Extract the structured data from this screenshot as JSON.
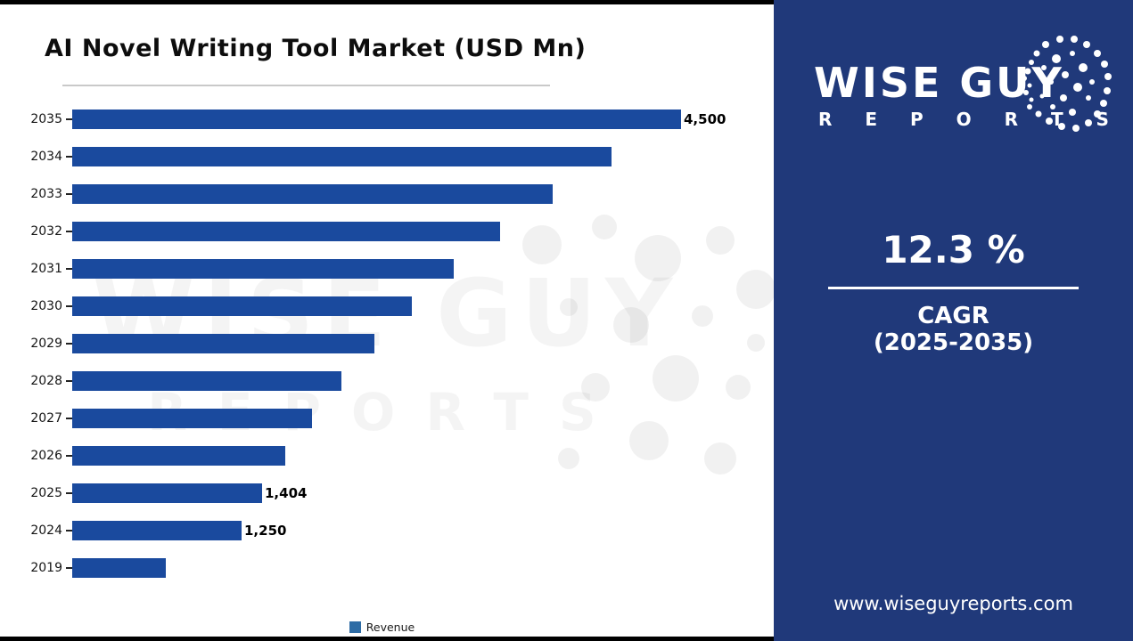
{
  "header": {
    "title": "AI Novel Writing Tool Market (USD Mn)"
  },
  "chart_data": {
    "type": "bar",
    "orientation": "horizontal",
    "title": "AI Novel Writing Tool Market (USD Mn)",
    "categories": [
      "2035",
      "2034",
      "2033",
      "2032",
      "2031",
      "2030",
      "2029",
      "2028",
      "2027",
      "2026",
      "2025",
      "2024",
      "2019"
    ],
    "values": [
      4500,
      3989,
      3552,
      3163,
      2817,
      2508,
      2233,
      1989,
      1771,
      1577,
      1404,
      1250,
      690
    ],
    "value_labels": [
      "4,500",
      "",
      "",
      "",
      "",
      "",
      "",
      "",
      "",
      "",
      "1,404",
      "1,250",
      ""
    ],
    "xlim": [
      0,
      4500
    ],
    "legend_label": "Revenue",
    "legend_position": "bottom-center",
    "grid": false,
    "bar_color": "#1a4a9e",
    "legend_color": "#2e6ca5"
  },
  "watermark": {
    "line1": "WISE GUY",
    "line2": "REPORTS"
  },
  "side_panel": {
    "background": "#20397a",
    "logo_line1": "WISE GUY",
    "logo_line2": "R E P O R T S",
    "cagr_value": "12.3 %",
    "cagr_label_line1": "CAGR",
    "cagr_label_line2": "(2025-2035)",
    "website": "www.wiseguyreports.com"
  }
}
